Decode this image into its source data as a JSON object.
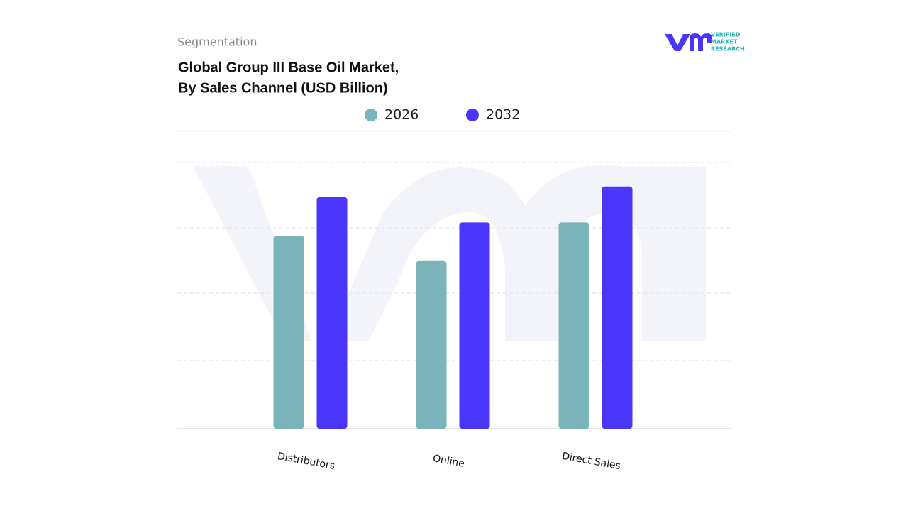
{
  "section": "Segmentation",
  "logo": {
    "lines": [
      "VERIFIED",
      "MARKET",
      "RESEARCH"
    ]
  },
  "chart_data": {
    "type": "bar",
    "title": "Global Group III Base Oil Market,",
    "subtitle": "By Sales Channel (USD Billion)",
    "categories": [
      "Distributors",
      "Online",
      "Direct Sales"
    ],
    "series": [
      {
        "name": "2026",
        "color": "#7ab3b9",
        "values": [
          2.9,
          2.52,
          3.1
        ]
      },
      {
        "name": "2032",
        "color": "#4a35fb",
        "values": [
          3.48,
          3.1,
          3.64
        ]
      }
    ],
    "ylim": [
      0,
      4
    ]
  }
}
